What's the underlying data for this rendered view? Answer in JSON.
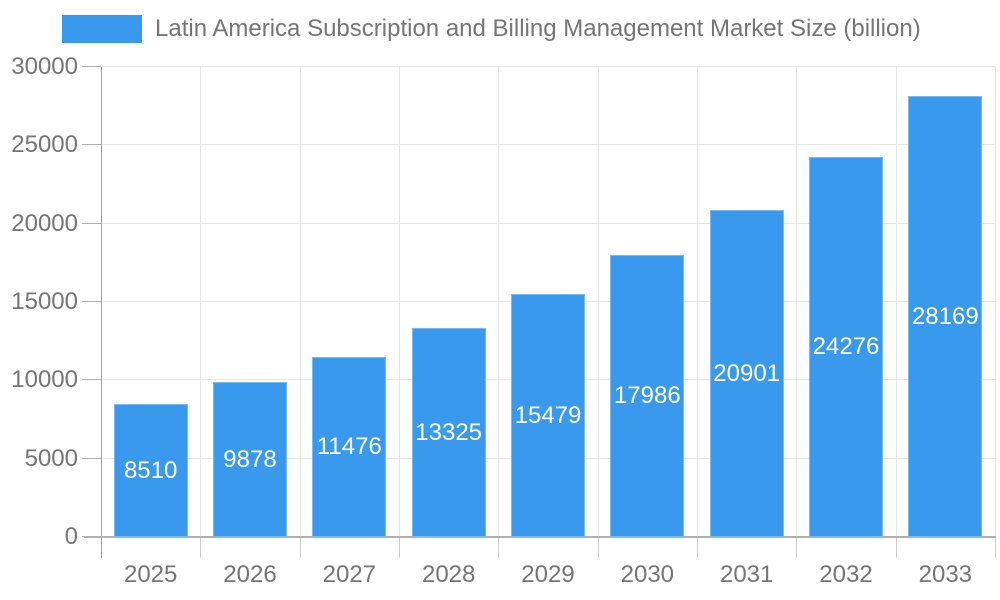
{
  "legend": {
    "items": [
      {
        "label": "Latin America Subscription and Billing Management Market Size (billion)",
        "color": "#3999ec"
      }
    ],
    "position": "top-left"
  },
  "chart_data": {
    "type": "bar",
    "title": "Latin America Subscription and Billing Management Market Size (billion)",
    "categories": [
      "2025",
      "2026",
      "2027",
      "2028",
      "2029",
      "2030",
      "2031",
      "2032",
      "2033"
    ],
    "series": [
      {
        "name": "Latin America Subscription and Billing Management Market Size (billion)",
        "values": [
          8510,
          9878,
          11476,
          13325,
          15479,
          17986,
          20901,
          24276,
          28169
        ],
        "color": "#3999ec"
      }
    ],
    "xlabel": "",
    "ylabel": "",
    "ylim": [
      0,
      30000
    ],
    "ytick_interval": 5000,
    "ytick_labels": [
      "0",
      "5000",
      "10000",
      "15000",
      "20000",
      "25000",
      "30000"
    ],
    "grid": true,
    "bar_labels_visible": true,
    "legend_position": "top-left",
    "colors": {
      "bar": "#3999ec",
      "bar_border": "#7ab9f1",
      "bar_label": "#ffffff",
      "grid_line": "#e6e6e6",
      "axis_line": "#9e9e9e",
      "baseline": "#b0b0b0",
      "tick": "#cccccc",
      "text": "#757575"
    }
  }
}
